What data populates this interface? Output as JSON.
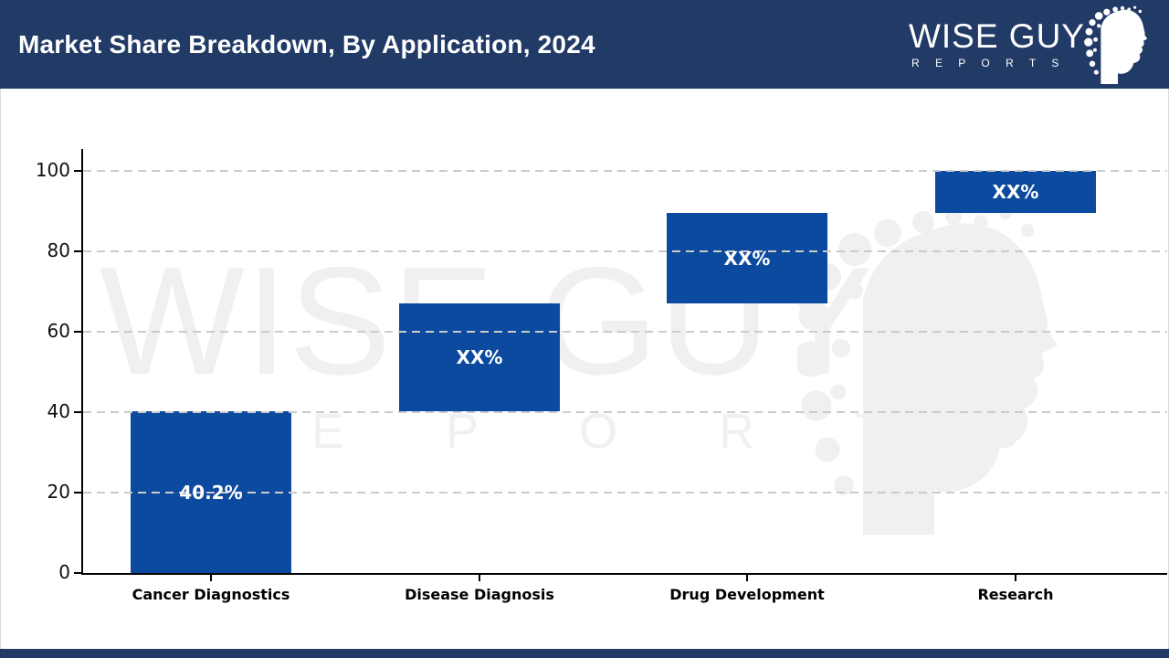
{
  "header": {
    "title": "Market Share Breakdown, By Application, 2024",
    "logo": {
      "wordmark": "WISE GUY",
      "subtext": "R E P O R T S"
    }
  },
  "watermark": {
    "wordmark": "WISE GUY",
    "subtext": "R E P O R T S"
  },
  "colors": {
    "navy": "#213A66",
    "bar_blue": "#0B4A9E",
    "grid": "#cbcbcb",
    "watermark_gray": "#f0f0f2",
    "axis": "#000000",
    "bar_label_text": "#ffffff",
    "frame_border": "#d9d9d9"
  },
  "chart_data": {
    "type": "bar",
    "subtype": "waterfall",
    "title": "Market Share Breakdown, By Application, 2024",
    "categories": [
      "Cancer Diagnostics",
      "Disease Diagnosis",
      "Drug Development",
      "Research"
    ],
    "series": [
      {
        "category": "Cancer Diagnostics",
        "start": 0,
        "end": 40.2,
        "label": "40.2%"
      },
      {
        "category": "Disease Diagnosis",
        "start": 40.2,
        "end": 67.0,
        "label": "XX%"
      },
      {
        "category": "Drug Development",
        "start": 67.0,
        "end": 89.5,
        "label": "XX%"
      },
      {
        "category": "Research",
        "start": 89.5,
        "end": 100,
        "label": "XX%"
      }
    ],
    "xlabel": "",
    "ylabel": "",
    "yticks": [
      0,
      20,
      40,
      60,
      80,
      100
    ],
    "ylim": [
      0,
      105
    ],
    "grid": "horizontal-dashed",
    "legend": "none",
    "bar_color": "#0B4A9E"
  }
}
